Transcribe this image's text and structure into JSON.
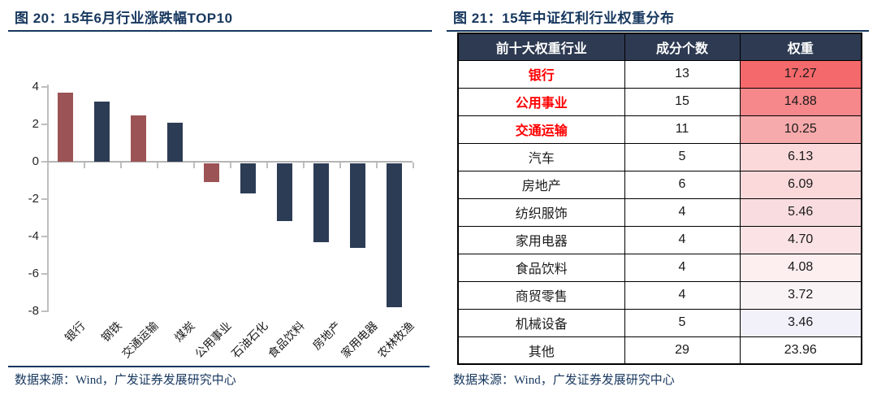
{
  "left_panel": {
    "title": "图 20：15年6月行业涨跌幅TOP10",
    "source": "数据来源：Wind，广发证券发展研究中心"
  },
  "right_panel": {
    "title": "图 21：15年中证红利行业权重分布",
    "source": "数据来源：Wind，广发证券发展研究中心"
  },
  "colors": {
    "title_navy": "#17375e",
    "bar_navy": "#2d3c55",
    "bar_red": "#9c5355",
    "table_header_bg": "#2e3a52",
    "table_header_text": "#ffffff",
    "highlight_red": "#ff0000",
    "axis_gray": "#bfbfbf"
  },
  "chart_data": [
    {
      "type": "bar",
      "title": "15年6月行业涨跌幅TOP10",
      "categories": [
        "银行",
        "钢铁",
        "交通运输",
        "煤炭",
        "公用事业",
        "石油石化",
        "食品饮料",
        "房地产",
        "家用电器",
        "农林牧渔"
      ],
      "values": [
        3.7,
        3.2,
        2.5,
        2.1,
        -1.0,
        -1.6,
        -3.1,
        -4.2,
        -4.5,
        -7.7
      ],
      "bar_colors": [
        "#9c5355",
        "#2d3c55",
        "#9c5355",
        "#2d3c55",
        "#9c5355",
        "#2d3c55",
        "#2d3c55",
        "#2d3c55",
        "#2d3c55",
        "#2d3c55"
      ],
      "xlabel": "",
      "ylabel": "",
      "ylim": [
        -8,
        4
      ],
      "yticks": [
        4,
        2,
        0,
        -2,
        -4,
        -6,
        -8
      ],
      "grid": false,
      "legend": "none"
    },
    {
      "type": "table",
      "title": "15年中证红利行业权重分布",
      "headers": [
        "前十大权重行业",
        "成分个数",
        "权重"
      ],
      "rows": [
        {
          "industry": "银行",
          "count": "13",
          "weight": "17.27",
          "highlight": true,
          "weight_bg": "#f4696b"
        },
        {
          "industry": "公用事业",
          "count": "15",
          "weight": "14.88",
          "highlight": true,
          "weight_bg": "#f6878a"
        },
        {
          "industry": "交通运输",
          "count": "11",
          "weight": "10.25",
          "highlight": true,
          "weight_bg": "#f7aaab"
        },
        {
          "industry": "汽车",
          "count": "5",
          "weight": "6.13",
          "highlight": false,
          "weight_bg": "#fbd8d9"
        },
        {
          "industry": "房地产",
          "count": "6",
          "weight": "6.09",
          "highlight": false,
          "weight_bg": "#fbd9da"
        },
        {
          "industry": "纺织服饰",
          "count": "4",
          "weight": "5.46",
          "highlight": false,
          "weight_bg": "#f9dcdf"
        },
        {
          "industry": "家用电器",
          "count": "4",
          "weight": "4.70",
          "highlight": false,
          "weight_bg": "#fbe3e5"
        },
        {
          "industry": "食品饮料",
          "count": "4",
          "weight": "4.08",
          "highlight": false,
          "weight_bg": "#fdeef0"
        },
        {
          "industry": "商贸零售",
          "count": "4",
          "weight": "3.72",
          "highlight": false,
          "weight_bg": "#faf3f6"
        },
        {
          "industry": "机械设备",
          "count": "5",
          "weight": "3.46",
          "highlight": false,
          "weight_bg": "#f2f0f9"
        },
        {
          "industry": "其他",
          "count": "29",
          "weight": "23.96",
          "highlight": false,
          "weight_bg": "#ffffff"
        }
      ]
    }
  ]
}
